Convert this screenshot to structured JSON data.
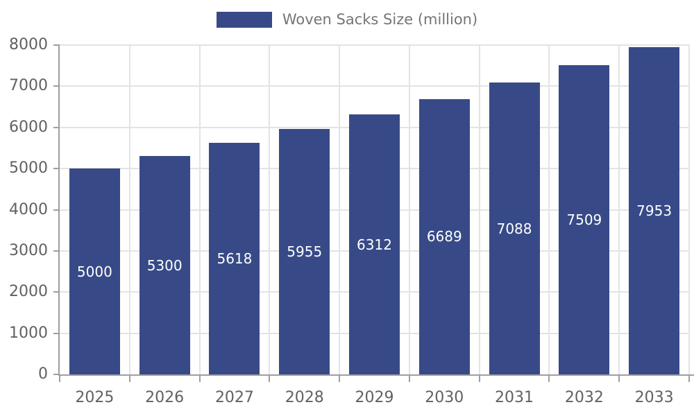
{
  "chart_data": {
    "type": "bar",
    "legend_label": "Woven Sacks Size (million)",
    "legend_position": "top-center",
    "categories": [
      "2025",
      "2026",
      "2027",
      "2028",
      "2029",
      "2030",
      "2031",
      "2032",
      "2033"
    ],
    "values": [
      5000,
      5300,
      5618,
      5955,
      6312,
      6689,
      7088,
      7509,
      7953
    ],
    "value_labels_inside_bars": true,
    "ylim": [
      0,
      8000
    ],
    "yticks": [
      0,
      1000,
      2000,
      3000,
      4000,
      5000,
      6000,
      7000,
      8000
    ],
    "grid": true,
    "colors": {
      "bar": "#374A87",
      "bar_value_label": "#ffffff",
      "grid": "#e3e3e3",
      "axis": "#9e9e9e",
      "tick_label": "#616161",
      "legend_text": "#757575"
    }
  }
}
